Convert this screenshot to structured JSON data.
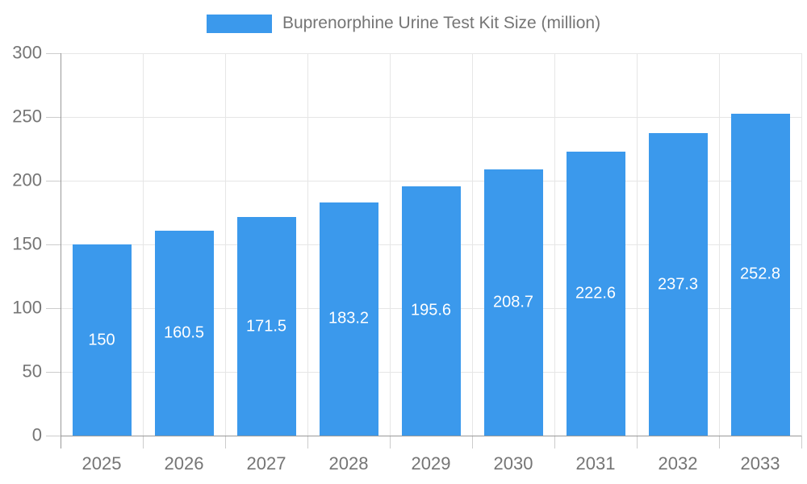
{
  "chart_data": {
    "type": "bar",
    "title": "Buprenorphine Urine Test Kit Size (million)",
    "categories": [
      "2025",
      "2026",
      "2027",
      "2028",
      "2029",
      "2030",
      "2031",
      "2032",
      "2033"
    ],
    "values": [
      150,
      160.5,
      171.5,
      183.2,
      195.6,
      208.7,
      222.6,
      237.3,
      252.8
    ],
    "value_labels": [
      "150",
      "160.5",
      "171.5",
      "183.2",
      "195.6",
      "208.7",
      "222.6",
      "237.3",
      "252.8"
    ],
    "xlabel": "",
    "ylabel": "",
    "ylim": [
      0,
      300
    ],
    "yticks": [
      0,
      50,
      100,
      150,
      200,
      250,
      300
    ],
    "grid": true,
    "legend_position": "top",
    "colors": {
      "bar": "#3B99EC",
      "value_label": "#FFFFFF",
      "axis_text": "#757575",
      "grid": "#E6E6E6",
      "axis_line": "#999999",
      "tick": "#CCCCCC"
    }
  }
}
